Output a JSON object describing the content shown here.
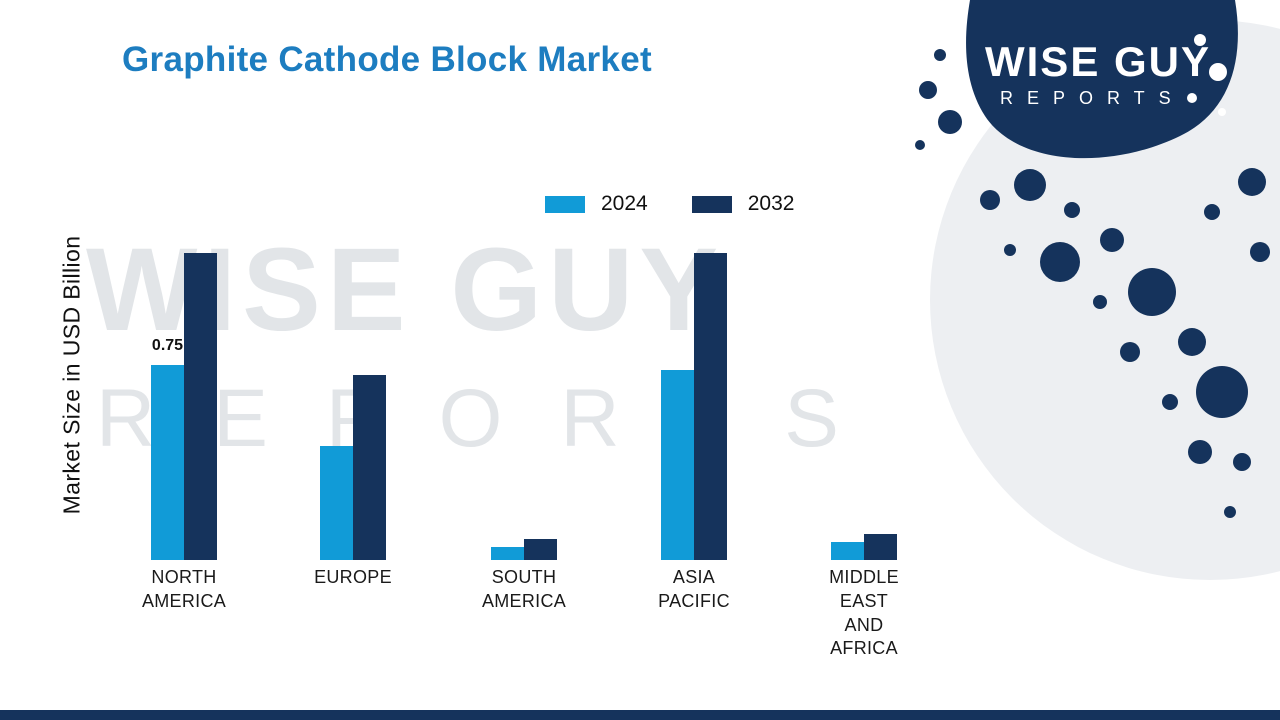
{
  "title": "Graphite Cathode Block Market",
  "ylabel": "Market Size in USD Billion",
  "watermark": {
    "line1": "WISE GUY",
    "line2": "REPORTS"
  },
  "logo": {
    "line1": "WISE GUY",
    "line2": "REPORTS"
  },
  "colors": {
    "title_blue": "#1d7dc0",
    "series_2024": "#119bd7",
    "series_2032": "#15335c",
    "watermark_gray": "#e2e5e8",
    "logo_navy": "#15335c",
    "footer_navy": "#15335c",
    "background_circle_gray": "#edeff2"
  },
  "chart_data": {
    "type": "bar",
    "title": "Graphite Cathode Block Market",
    "ylabel": "Market Size in USD Billion",
    "unit": "USD Billion",
    "categories": [
      "NORTH\nAMERICA",
      "EUROPE",
      "SOUTH\nAMERICA",
      "ASIA\nPACIFIC",
      "MIDDLE\nEAST\nAND\nAFRICA"
    ],
    "series": [
      {
        "name": "2024",
        "color": "#119bd7",
        "values": [
          0.75,
          0.44,
          0.05,
          0.73,
          0.07
        ],
        "value_labels": [
          "0.75",
          "",
          "",
          "",
          ""
        ]
      },
      {
        "name": "2032",
        "color": "#15335c",
        "values": [
          1.18,
          0.71,
          0.08,
          1.18,
          0.1
        ],
        "value_labels": [
          "",
          "",
          "",
          "",
          ""
        ]
      }
    ],
    "legend_position": "top",
    "grid": false,
    "ylim": [
      0,
      1.3
    ]
  }
}
